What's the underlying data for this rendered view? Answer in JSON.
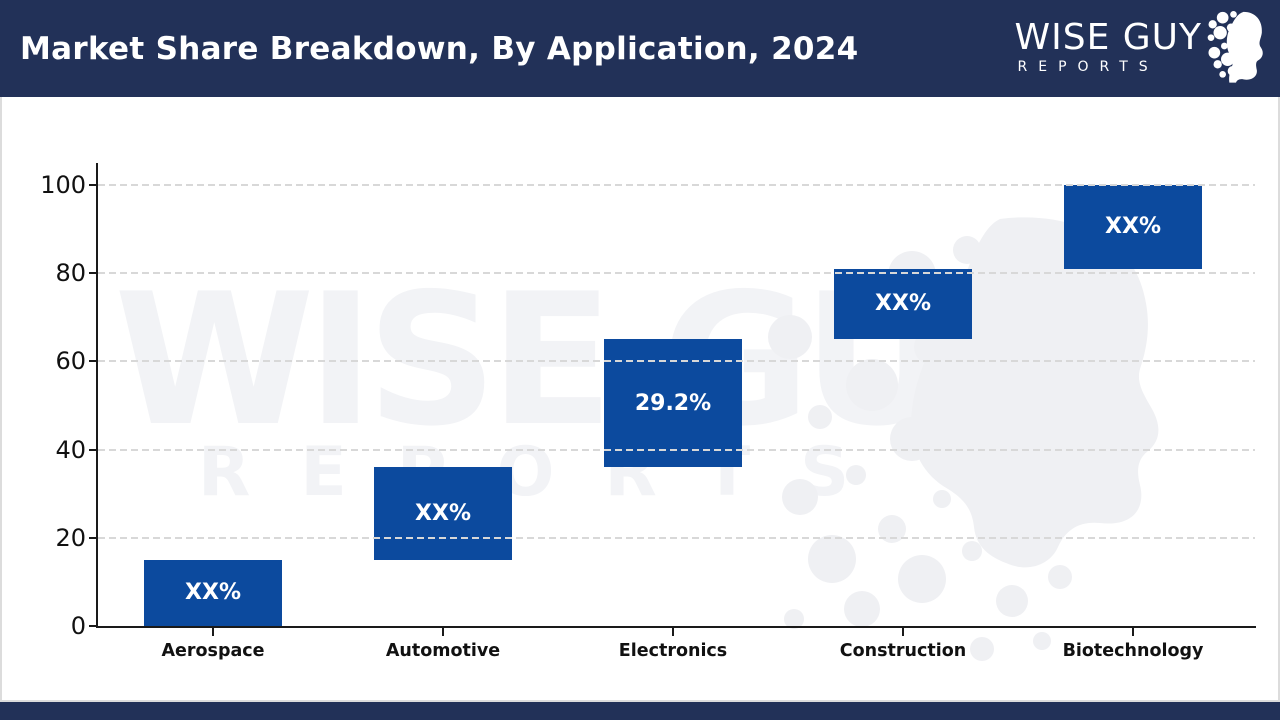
{
  "header": {
    "title": "Market Share Breakdown, By Application, 2024",
    "logo": {
      "wordmark": "WISE GUY",
      "sub": "REPORTS"
    }
  },
  "watermark": {
    "wordmark": "WISE GUY",
    "sub": "REPORTS"
  },
  "chart_data": {
    "type": "bar",
    "subtype": "floating-waterfall",
    "title": "Market Share Breakdown, By Application, 2024",
    "categories": [
      "Aerospace",
      "Automotive",
      "Electronics",
      "Construction",
      "Biotechnology"
    ],
    "segments": [
      {
        "category": "Aerospace",
        "start": 0,
        "end": 15,
        "label": "XX%"
      },
      {
        "category": "Automotive",
        "start": 15,
        "end": 36,
        "label": "XX%"
      },
      {
        "category": "Electronics",
        "start": 36,
        "end": 65,
        "label": "29.2%"
      },
      {
        "category": "Construction",
        "start": 65,
        "end": 81,
        "label": "XX%"
      },
      {
        "category": "Biotechnology",
        "start": 81,
        "end": 100,
        "label": "XX%"
      }
    ],
    "yticks": [
      0,
      20,
      40,
      60,
      80,
      100
    ],
    "ylim": [
      0,
      105
    ],
    "xlabel": "",
    "ylabel": "",
    "grid": "horizontal-dashed",
    "gridlines_above_bars": true,
    "legend": "none",
    "bar_color": "#0c4a9e",
    "bar_label_color": "#ffffff"
  },
  "colors": {
    "header_bg": "#223158",
    "footer_bg": "#223158",
    "bar": "#0c4a9e",
    "grid": "#d8d8d8",
    "axis": "#1a1a1a",
    "watermark": "#f2f3f6"
  }
}
